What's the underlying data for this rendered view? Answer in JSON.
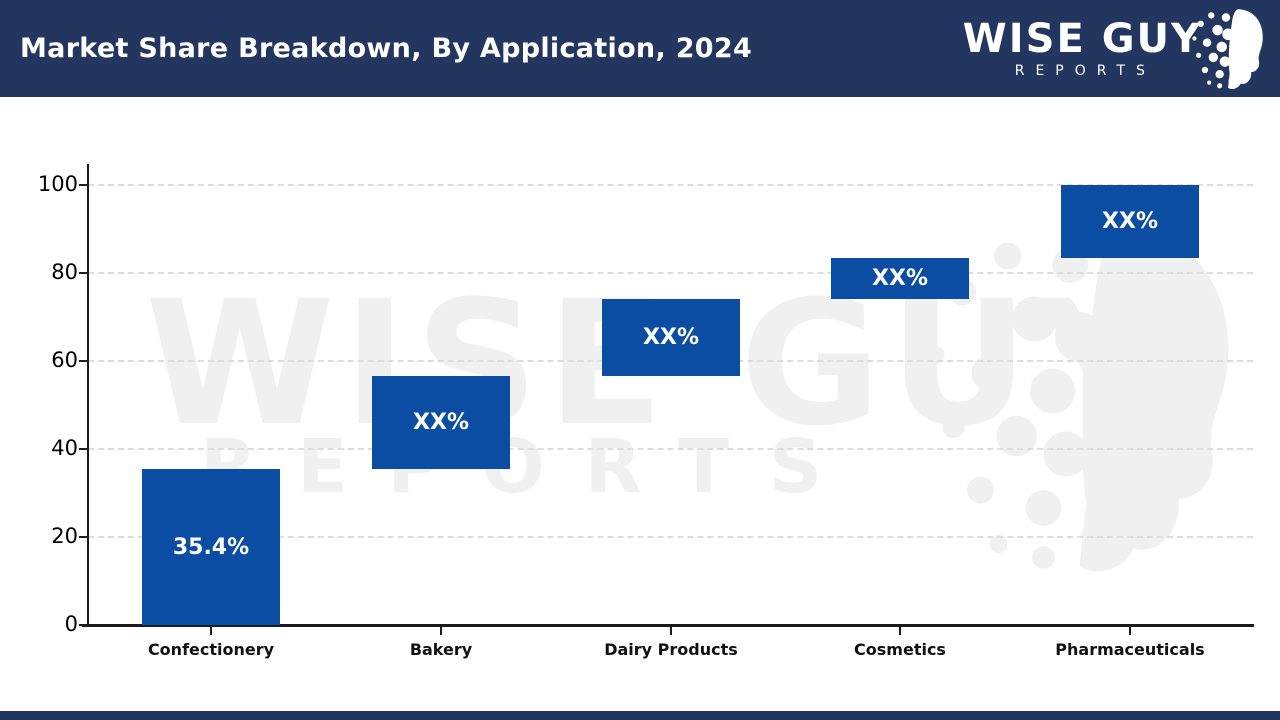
{
  "header": {
    "title": "Market Share Breakdown, By Application, 2024",
    "logo_line1": "WISE GUY",
    "logo_line2": "REPORTS"
  },
  "watermark": {
    "line1": "WISE GUY",
    "line2": "REPORTS"
  },
  "chart_data": {
    "type": "bar",
    "subtype": "waterfall",
    "title": "Market Share Breakdown, By Application, 2024",
    "categories": [
      "Confectionery",
      "Bakery",
      "Dairy Products",
      "Cosmetics",
      "Pharmaceuticals"
    ],
    "series": [
      {
        "name": "Market Share %",
        "segments": [
          {
            "category": "Confectionery",
            "start": 0,
            "end": 35.4,
            "label": "35.4%"
          },
          {
            "category": "Bakery",
            "start": 35.4,
            "end": 56.5,
            "label": "XX%"
          },
          {
            "category": "Dairy Products",
            "start": 56.5,
            "end": 74.0,
            "label": "XX%"
          },
          {
            "category": "Cosmetics",
            "start": 74.0,
            "end": 83.5,
            "label": "XX%"
          },
          {
            "category": "Pharmaceuticals",
            "start": 83.5,
            "end": 100.0,
            "label": "XX%"
          }
        ]
      }
    ],
    "y_ticks": [
      0,
      20,
      40,
      60,
      80,
      100
    ],
    "ylim": [
      0,
      105
    ],
    "xlabel": "",
    "ylabel": "",
    "grid": "horizontal-dashed",
    "legend": "none",
    "bar_color": "#0b4da2",
    "bar_label_color": "#ffffff",
    "axis_color": "#1a1a1a",
    "grid_color": "#dcdcdc",
    "header_color": "#223660"
  }
}
